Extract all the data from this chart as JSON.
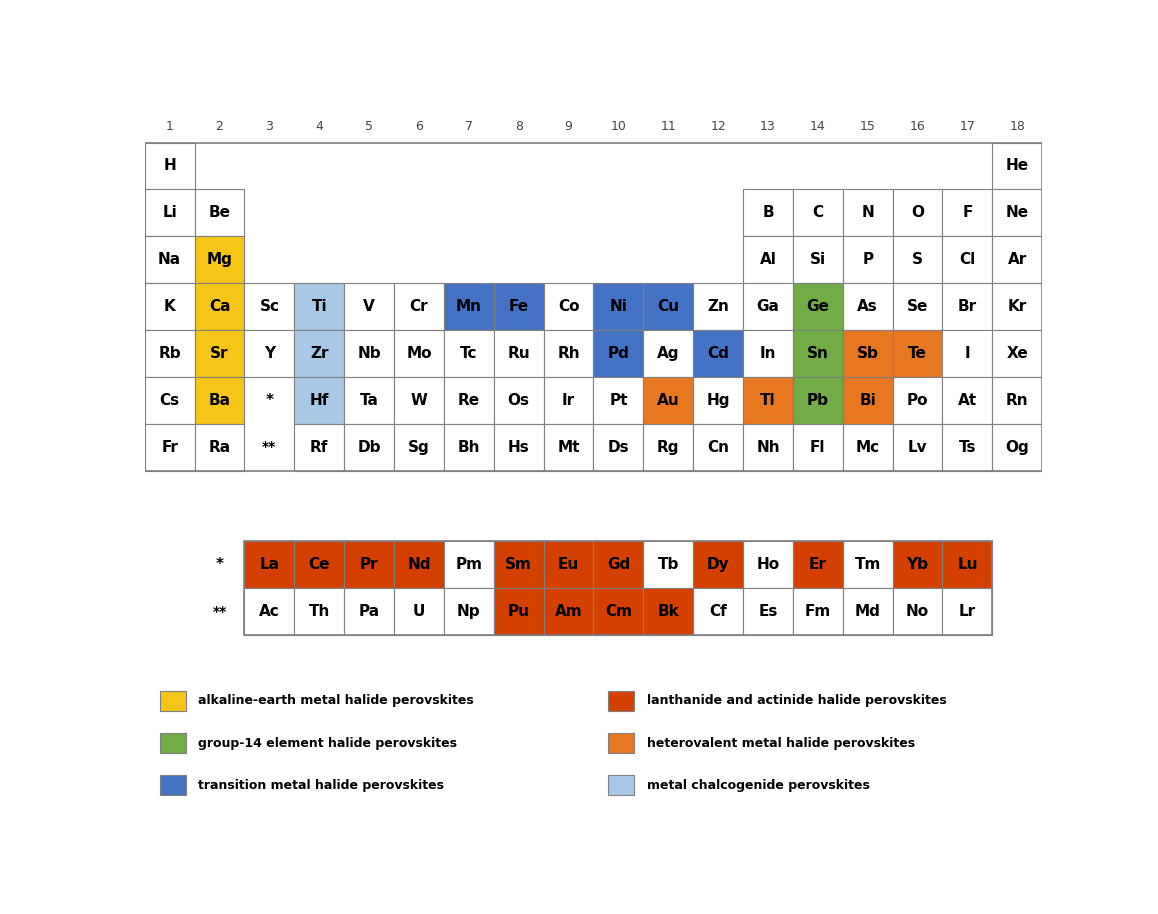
{
  "background_color": "#ffffff",
  "cell_edge_color": "#7f7f7f",
  "cell_text_color": "#000000",
  "colors": {
    "yellow": "#F5C518",
    "light_blue": "#A8C8E8",
    "blue": "#4472C4",
    "green": "#70AD47",
    "orange": "#E87722",
    "red_orange": "#D44000",
    "white": "#FFFFFF"
  },
  "legend": [
    {
      "color": "#F5C518",
      "label": "alkaline-earth metal halide perovskites",
      "col": 0
    },
    {
      "color": "#70AD47",
      "label": "group-14 element halide perovskites",
      "col": 0
    },
    {
      "color": "#4472C4",
      "label": "transition metal halide perovskites",
      "col": 0
    },
    {
      "color": "#D44000",
      "label": "lanthanide and actinide halide perovskites",
      "col": 1
    },
    {
      "color": "#E87722",
      "label": "heterovalent metal halide perovskites",
      "col": 1
    },
    {
      "color": "#A8C8E8",
      "label": "metal chalcogenide perovskites",
      "col": 1
    }
  ],
  "elements": [
    {
      "symbol": "H",
      "row": 1,
      "col": 1,
      "color": "white"
    },
    {
      "symbol": "He",
      "row": 1,
      "col": 18,
      "color": "white"
    },
    {
      "symbol": "Li",
      "row": 2,
      "col": 1,
      "color": "white"
    },
    {
      "symbol": "Be",
      "row": 2,
      "col": 2,
      "color": "white"
    },
    {
      "symbol": "B",
      "row": 2,
      "col": 13,
      "color": "white"
    },
    {
      "symbol": "C",
      "row": 2,
      "col": 14,
      "color": "white"
    },
    {
      "symbol": "N",
      "row": 2,
      "col": 15,
      "color": "white"
    },
    {
      "symbol": "O",
      "row": 2,
      "col": 16,
      "color": "white"
    },
    {
      "symbol": "F",
      "row": 2,
      "col": 17,
      "color": "white"
    },
    {
      "symbol": "Ne",
      "row": 2,
      "col": 18,
      "color": "white"
    },
    {
      "symbol": "Na",
      "row": 3,
      "col": 1,
      "color": "white"
    },
    {
      "symbol": "Mg",
      "row": 3,
      "col": 2,
      "color": "yellow"
    },
    {
      "symbol": "Al",
      "row": 3,
      "col": 13,
      "color": "white"
    },
    {
      "symbol": "Si",
      "row": 3,
      "col": 14,
      "color": "white"
    },
    {
      "symbol": "P",
      "row": 3,
      "col": 15,
      "color": "white"
    },
    {
      "symbol": "S",
      "row": 3,
      "col": 16,
      "color": "white"
    },
    {
      "symbol": "Cl",
      "row": 3,
      "col": 17,
      "color": "white"
    },
    {
      "symbol": "Ar",
      "row": 3,
      "col": 18,
      "color": "white"
    },
    {
      "symbol": "K",
      "row": 4,
      "col": 1,
      "color": "white"
    },
    {
      "symbol": "Ca",
      "row": 4,
      "col": 2,
      "color": "yellow"
    },
    {
      "symbol": "Sc",
      "row": 4,
      "col": 3,
      "color": "white"
    },
    {
      "symbol": "Ti",
      "row": 4,
      "col": 4,
      "color": "light_blue"
    },
    {
      "symbol": "V",
      "row": 4,
      "col": 5,
      "color": "white"
    },
    {
      "symbol": "Cr",
      "row": 4,
      "col": 6,
      "color": "white"
    },
    {
      "symbol": "Mn",
      "row": 4,
      "col": 7,
      "color": "blue"
    },
    {
      "symbol": "Fe",
      "row": 4,
      "col": 8,
      "color": "blue"
    },
    {
      "symbol": "Co",
      "row": 4,
      "col": 9,
      "color": "white"
    },
    {
      "symbol": "Ni",
      "row": 4,
      "col": 10,
      "color": "blue"
    },
    {
      "symbol": "Cu",
      "row": 4,
      "col": 11,
      "color": "blue"
    },
    {
      "symbol": "Zn",
      "row": 4,
      "col": 12,
      "color": "white"
    },
    {
      "symbol": "Ga",
      "row": 4,
      "col": 13,
      "color": "white"
    },
    {
      "symbol": "Ge",
      "row": 4,
      "col": 14,
      "color": "green"
    },
    {
      "symbol": "As",
      "row": 4,
      "col": 15,
      "color": "white"
    },
    {
      "symbol": "Se",
      "row": 4,
      "col": 16,
      "color": "white"
    },
    {
      "symbol": "Br",
      "row": 4,
      "col": 17,
      "color": "white"
    },
    {
      "symbol": "Kr",
      "row": 4,
      "col": 18,
      "color": "white"
    },
    {
      "symbol": "Rb",
      "row": 5,
      "col": 1,
      "color": "white"
    },
    {
      "symbol": "Sr",
      "row": 5,
      "col": 2,
      "color": "yellow"
    },
    {
      "symbol": "Y",
      "row": 5,
      "col": 3,
      "color": "white"
    },
    {
      "symbol": "Zr",
      "row": 5,
      "col": 4,
      "color": "light_blue"
    },
    {
      "symbol": "Nb",
      "row": 5,
      "col": 5,
      "color": "white"
    },
    {
      "symbol": "Mo",
      "row": 5,
      "col": 6,
      "color": "white"
    },
    {
      "symbol": "Tc",
      "row": 5,
      "col": 7,
      "color": "white"
    },
    {
      "symbol": "Ru",
      "row": 5,
      "col": 8,
      "color": "white"
    },
    {
      "symbol": "Rh",
      "row": 5,
      "col": 9,
      "color": "white"
    },
    {
      "symbol": "Pd",
      "row": 5,
      "col": 10,
      "color": "blue"
    },
    {
      "symbol": "Ag",
      "row": 5,
      "col": 11,
      "color": "white"
    },
    {
      "symbol": "Cd",
      "row": 5,
      "col": 12,
      "color": "blue"
    },
    {
      "symbol": "In",
      "row": 5,
      "col": 13,
      "color": "white"
    },
    {
      "symbol": "Sn",
      "row": 5,
      "col": 14,
      "color": "green"
    },
    {
      "symbol": "Sb",
      "row": 5,
      "col": 15,
      "color": "orange"
    },
    {
      "symbol": "Te",
      "row": 5,
      "col": 16,
      "color": "orange"
    },
    {
      "symbol": "I",
      "row": 5,
      "col": 17,
      "color": "white"
    },
    {
      "symbol": "Xe",
      "row": 5,
      "col": 18,
      "color": "white"
    },
    {
      "symbol": "Cs",
      "row": 6,
      "col": 1,
      "color": "white"
    },
    {
      "symbol": "Ba",
      "row": 6,
      "col": 2,
      "color": "yellow"
    },
    {
      "symbol": "Hf",
      "row": 6,
      "col": 4,
      "color": "light_blue"
    },
    {
      "symbol": "Ta",
      "row": 6,
      "col": 5,
      "color": "white"
    },
    {
      "symbol": "W",
      "row": 6,
      "col": 6,
      "color": "white"
    },
    {
      "symbol": "Re",
      "row": 6,
      "col": 7,
      "color": "white"
    },
    {
      "symbol": "Os",
      "row": 6,
      "col": 8,
      "color": "white"
    },
    {
      "symbol": "Ir",
      "row": 6,
      "col": 9,
      "color": "white"
    },
    {
      "symbol": "Pt",
      "row": 6,
      "col": 10,
      "color": "white"
    },
    {
      "symbol": "Au",
      "row": 6,
      "col": 11,
      "color": "orange"
    },
    {
      "symbol": "Hg",
      "row": 6,
      "col": 12,
      "color": "white"
    },
    {
      "symbol": "Tl",
      "row": 6,
      "col": 13,
      "color": "orange"
    },
    {
      "symbol": "Pb",
      "row": 6,
      "col": 14,
      "color": "green"
    },
    {
      "symbol": "Bi",
      "row": 6,
      "col": 15,
      "color": "orange"
    },
    {
      "symbol": "Po",
      "row": 6,
      "col": 16,
      "color": "white"
    },
    {
      "symbol": "At",
      "row": 6,
      "col": 17,
      "color": "white"
    },
    {
      "symbol": "Rn",
      "row": 6,
      "col": 18,
      "color": "white"
    },
    {
      "symbol": "Fr",
      "row": 7,
      "col": 1,
      "color": "white"
    },
    {
      "symbol": "Ra",
      "row": 7,
      "col": 2,
      "color": "white"
    },
    {
      "symbol": "Rf",
      "row": 7,
      "col": 4,
      "color": "white"
    },
    {
      "symbol": "Db",
      "row": 7,
      "col": 5,
      "color": "white"
    },
    {
      "symbol": "Sg",
      "row": 7,
      "col": 6,
      "color": "white"
    },
    {
      "symbol": "Bh",
      "row": 7,
      "col": 7,
      "color": "white"
    },
    {
      "symbol": "Hs",
      "row": 7,
      "col": 8,
      "color": "white"
    },
    {
      "symbol": "Mt",
      "row": 7,
      "col": 9,
      "color": "white"
    },
    {
      "symbol": "Ds",
      "row": 7,
      "col": 10,
      "color": "white"
    },
    {
      "symbol": "Rg",
      "row": 7,
      "col": 11,
      "color": "white"
    },
    {
      "symbol": "Cn",
      "row": 7,
      "col": 12,
      "color": "white"
    },
    {
      "symbol": "Nh",
      "row": 7,
      "col": 13,
      "color": "white"
    },
    {
      "symbol": "Fl",
      "row": 7,
      "col": 14,
      "color": "white"
    },
    {
      "symbol": "Mc",
      "row": 7,
      "col": 15,
      "color": "white"
    },
    {
      "symbol": "Lv",
      "row": 7,
      "col": 16,
      "color": "white"
    },
    {
      "symbol": "Ts",
      "row": 7,
      "col": 17,
      "color": "white"
    },
    {
      "symbol": "Og",
      "row": 7,
      "col": 18,
      "color": "white"
    },
    {
      "symbol": "La",
      "row": 9,
      "col": 3,
      "color": "red_orange"
    },
    {
      "symbol": "Ce",
      "row": 9,
      "col": 4,
      "color": "red_orange"
    },
    {
      "symbol": "Pr",
      "row": 9,
      "col": 5,
      "color": "red_orange"
    },
    {
      "symbol": "Nd",
      "row": 9,
      "col": 6,
      "color": "red_orange"
    },
    {
      "symbol": "Pm",
      "row": 9,
      "col": 7,
      "color": "white"
    },
    {
      "symbol": "Sm",
      "row": 9,
      "col": 8,
      "color": "red_orange"
    },
    {
      "symbol": "Eu",
      "row": 9,
      "col": 9,
      "color": "red_orange"
    },
    {
      "symbol": "Gd",
      "row": 9,
      "col": 10,
      "color": "red_orange"
    },
    {
      "symbol": "Tb",
      "row": 9,
      "col": 11,
      "color": "white"
    },
    {
      "symbol": "Dy",
      "row": 9,
      "col": 12,
      "color": "red_orange"
    },
    {
      "symbol": "Ho",
      "row": 9,
      "col": 13,
      "color": "white"
    },
    {
      "symbol": "Er",
      "row": 9,
      "col": 14,
      "color": "red_orange"
    },
    {
      "symbol": "Tm",
      "row": 9,
      "col": 15,
      "color": "white"
    },
    {
      "symbol": "Yb",
      "row": 9,
      "col": 16,
      "color": "red_orange"
    },
    {
      "symbol": "Lu",
      "row": 9,
      "col": 17,
      "color": "red_orange"
    },
    {
      "symbol": "Ac",
      "row": 10,
      "col": 3,
      "color": "white"
    },
    {
      "symbol": "Th",
      "row": 10,
      "col": 4,
      "color": "white"
    },
    {
      "symbol": "Pa",
      "row": 10,
      "col": 5,
      "color": "white"
    },
    {
      "symbol": "U",
      "row": 10,
      "col": 6,
      "color": "white"
    },
    {
      "symbol": "Np",
      "row": 10,
      "col": 7,
      "color": "white"
    },
    {
      "symbol": "Pu",
      "row": 10,
      "col": 8,
      "color": "red_orange"
    },
    {
      "symbol": "Am",
      "row": 10,
      "col": 9,
      "color": "red_orange"
    },
    {
      "symbol": "Cm",
      "row": 10,
      "col": 10,
      "color": "red_orange"
    },
    {
      "symbol": "Bk",
      "row": 10,
      "col": 11,
      "color": "red_orange"
    },
    {
      "symbol": "Cf",
      "row": 10,
      "col": 12,
      "color": "white"
    },
    {
      "symbol": "Es",
      "row": 10,
      "col": 13,
      "color": "white"
    },
    {
      "symbol": "Fm",
      "row": 10,
      "col": 14,
      "color": "white"
    },
    {
      "symbol": "Md",
      "row": 10,
      "col": 15,
      "color": "white"
    },
    {
      "symbol": "No",
      "row": 10,
      "col": 16,
      "color": "white"
    },
    {
      "symbol": "Lr",
      "row": 10,
      "col": 17,
      "color": "white"
    }
  ],
  "col_labels": [
    1,
    2,
    3,
    4,
    5,
    6,
    7,
    8,
    9,
    10,
    11,
    12,
    13,
    14,
    15,
    16,
    17,
    18
  ],
  "star_label_row6_text": "*",
  "star_label_row7_text": "**",
  "lant_row_star": "*",
  "act_row_star": "**"
}
